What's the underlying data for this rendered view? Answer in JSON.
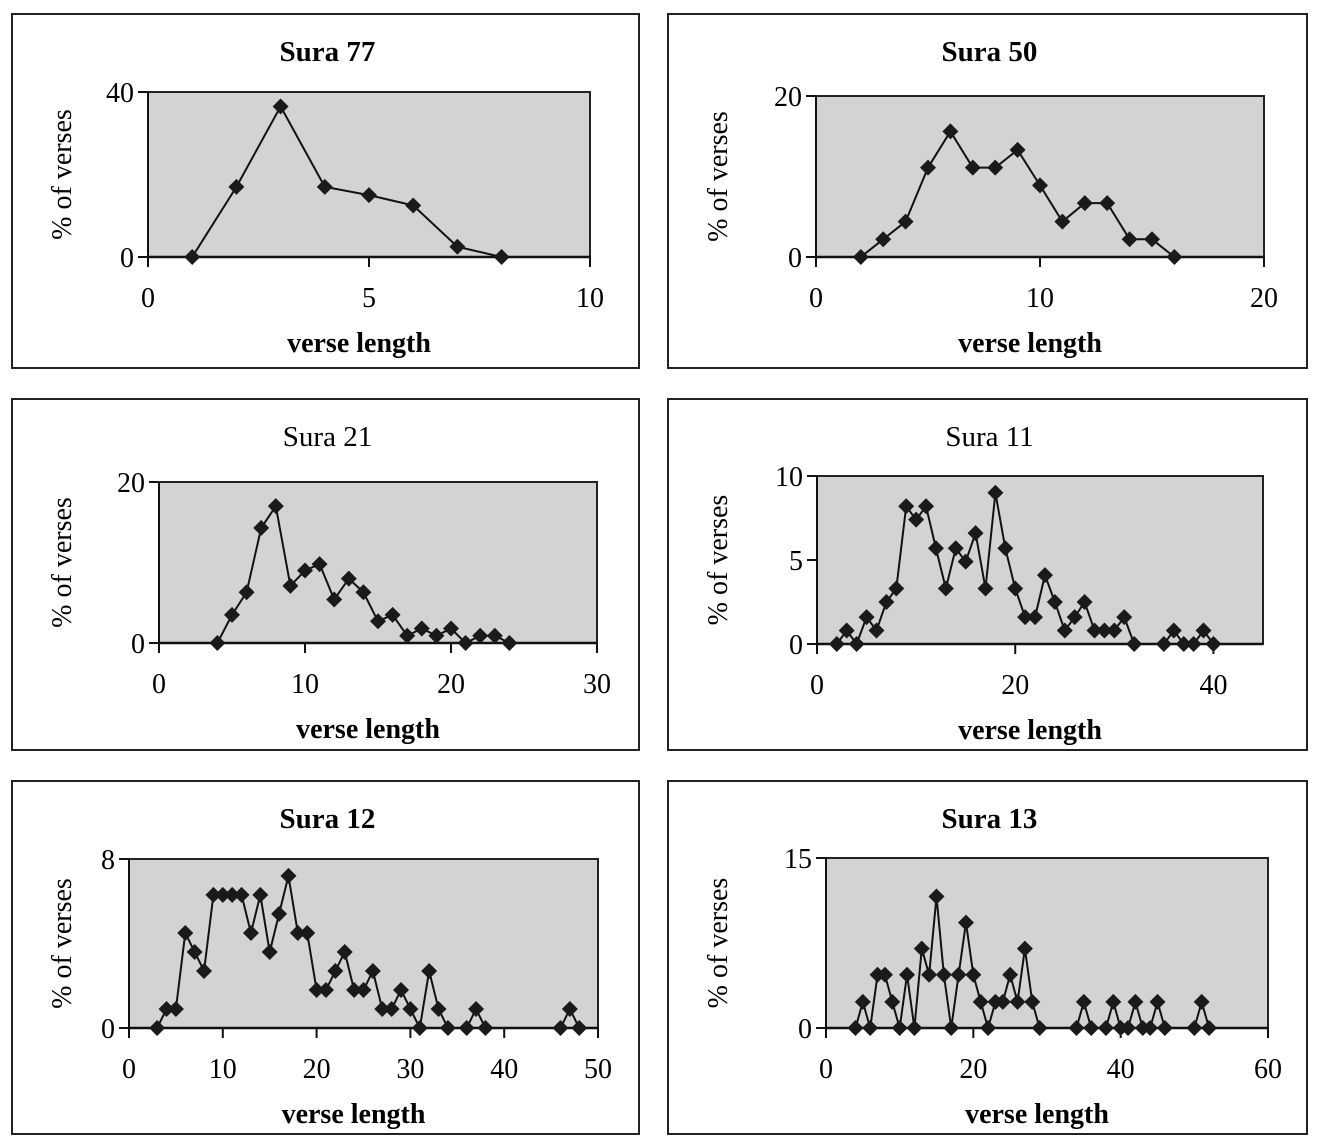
{
  "chart_data": [
    {
      "type": "line",
      "title": "Sura 77",
      "title_bold": true,
      "xlabel": "verse length",
      "ylabel": "% of verses",
      "xlim": [
        0,
        10
      ],
      "ylim": [
        0,
        40
      ],
      "xticks": [
        0,
        5,
        10
      ],
      "yticks": [
        0,
        40
      ],
      "grid": false,
      "marker": "diamond",
      "plot_background": "#d3d3d3",
      "series": [
        {
          "name": "Sura 77",
          "x": [
            1,
            2,
            3,
            4,
            5,
            6,
            7,
            8
          ],
          "y": [
            0,
            17,
            36.5,
            17,
            15,
            12.5,
            2.5,
            0
          ]
        }
      ]
    },
    {
      "type": "line",
      "title": "Sura 50",
      "title_bold": true,
      "xlabel": "verse length",
      "ylabel": "% of verses",
      "xlim": [
        0,
        20
      ],
      "ylim": [
        0,
        20
      ],
      "xticks": [
        0,
        10,
        20
      ],
      "yticks": [
        0,
        20
      ],
      "grid": false,
      "marker": "diamond",
      "plot_background": "#d3d3d3",
      "series": [
        {
          "name": "Sura 50",
          "x": [
            2,
            3,
            4,
            5,
            6,
            7,
            8,
            9,
            10,
            11,
            12,
            13,
            14,
            15,
            16
          ],
          "y": [
            0,
            2.2,
            4.4,
            11.1,
            15.6,
            11.1,
            11.1,
            13.3,
            8.9,
            4.4,
            6.7,
            6.7,
            2.2,
            2.2,
            0
          ]
        }
      ]
    },
    {
      "type": "line",
      "title": "Sura 21",
      "title_bold": false,
      "xlabel": "verse length",
      "ylabel": "% of verses",
      "xlim": [
        0,
        30
      ],
      "ylim": [
        0,
        20
      ],
      "xticks": [
        0,
        10,
        20,
        30
      ],
      "yticks": [
        0,
        20
      ],
      "grid": false,
      "marker": "diamond",
      "plot_background": "#d3d3d3",
      "series": [
        {
          "name": "Sura 21",
          "x": [
            4,
            5,
            6,
            7,
            8,
            9,
            10,
            11,
            12,
            13,
            14,
            15,
            16,
            17,
            18,
            19,
            20,
            21,
            22,
            23,
            24
          ],
          "y": [
            0,
            3.5,
            6.3,
            14.3,
            17,
            7.1,
            9,
            9.8,
            5.4,
            8,
            6.3,
            2.7,
            3.5,
            0.9,
            1.8,
            0.9,
            1.8,
            0,
            0.9,
            0.9,
            0
          ]
        }
      ]
    },
    {
      "type": "line",
      "title": "Sura 11",
      "title_bold": false,
      "xlabel": "verse length",
      "ylabel": "% of verses",
      "xlim": [
        0,
        45
      ],
      "ylim": [
        0,
        10
      ],
      "xticks": [
        0,
        20,
        40
      ],
      "yticks": [
        0,
        5,
        10
      ],
      "grid": false,
      "marker": "diamond",
      "plot_background": "#d3d3d3",
      "series": [
        {
          "name": "Sura 11",
          "x": [
            2,
            3,
            4,
            5,
            6,
            7,
            8,
            9,
            10,
            11,
            12,
            13,
            14,
            15,
            16,
            17,
            18,
            19,
            20,
            21,
            22,
            23,
            24,
            25,
            26,
            27,
            28,
            29,
            30,
            31,
            32,
            35,
            36,
            37,
            38,
            39,
            40
          ],
          "y": [
            0,
            0.8,
            0,
            1.6,
            0.8,
            2.5,
            3.3,
            8.2,
            7.4,
            8.2,
            5.7,
            3.3,
            5.7,
            4.9,
            6.6,
            3.3,
            9,
            5.7,
            3.3,
            1.6,
            1.6,
            4.1,
            2.5,
            0.8,
            1.6,
            2.5,
            0.8,
            0.8,
            0.8,
            1.6,
            0,
            0,
            0.8,
            0,
            0,
            0.8,
            0
          ]
        }
      ]
    },
    {
      "type": "line",
      "title": "Sura 12",
      "title_bold": true,
      "xlabel": "verse length",
      "ylabel": "% of verses",
      "xlim": [
        0,
        50
      ],
      "ylim": [
        0,
        8
      ],
      "xticks": [
        0,
        10,
        20,
        30,
        40,
        50
      ],
      "yticks": [
        0,
        8
      ],
      "grid": false,
      "marker": "diamond",
      "plot_background": "#d3d3d3",
      "series": [
        {
          "name": "Sura 12",
          "x": [
            3,
            4,
            5,
            6,
            7,
            8,
            9,
            10,
            11,
            12,
            13,
            14,
            15,
            16,
            17,
            18,
            19,
            20,
            21,
            22,
            23,
            24,
            25,
            26,
            27,
            28,
            29,
            30,
            31,
            32,
            33,
            34,
            36,
            37,
            38,
            46,
            47,
            48
          ],
          "y": [
            0,
            0.9,
            0.9,
            4.5,
            3.6,
            2.7,
            6.3,
            6.3,
            6.3,
            6.3,
            4.5,
            6.3,
            3.6,
            5.4,
            7.2,
            4.5,
            4.5,
            1.8,
            1.8,
            2.7,
            3.6,
            1.8,
            1.8,
            2.7,
            0.9,
            0.9,
            1.8,
            0.9,
            0,
            2.7,
            0.9,
            0,
            0,
            0.9,
            0,
            0,
            0.9,
            0
          ]
        }
      ]
    },
    {
      "type": "line",
      "title": "Sura 13",
      "title_bold": true,
      "xlabel": "verse length",
      "ylabel": "% of verses",
      "xlim": [
        0,
        60
      ],
      "ylim": [
        0,
        15
      ],
      "xticks": [
        0,
        20,
        40,
        60
      ],
      "yticks": [
        0,
        15
      ],
      "grid": false,
      "marker": "diamond",
      "plot_background": "#d3d3d3",
      "series": [
        {
          "name": "Sura 13",
          "x": [
            4,
            5,
            6,
            7,
            8,
            9,
            10,
            11,
            12,
            13,
            14,
            15,
            16,
            17,
            18,
            19,
            20,
            21,
            22,
            23,
            24,
            25,
            26,
            27,
            28,
            29,
            34,
            35,
            36,
            38,
            39,
            40,
            41,
            42,
            43,
            44,
            45,
            46,
            50,
            51,
            52
          ],
          "y": [
            0,
            2.3,
            0,
            4.7,
            4.7,
            2.3,
            0,
            4.7,
            0,
            7,
            4.7,
            11.6,
            4.7,
            0,
            4.7,
            9.3,
            4.7,
            2.3,
            0,
            2.3,
            2.3,
            4.7,
            2.3,
            7,
            2.3,
            0,
            0,
            2.3,
            0,
            0,
            2.3,
            0,
            0,
            2.3,
            0,
            0,
            2.3,
            0,
            0,
            2.3,
            0
          ]
        }
      ]
    }
  ]
}
